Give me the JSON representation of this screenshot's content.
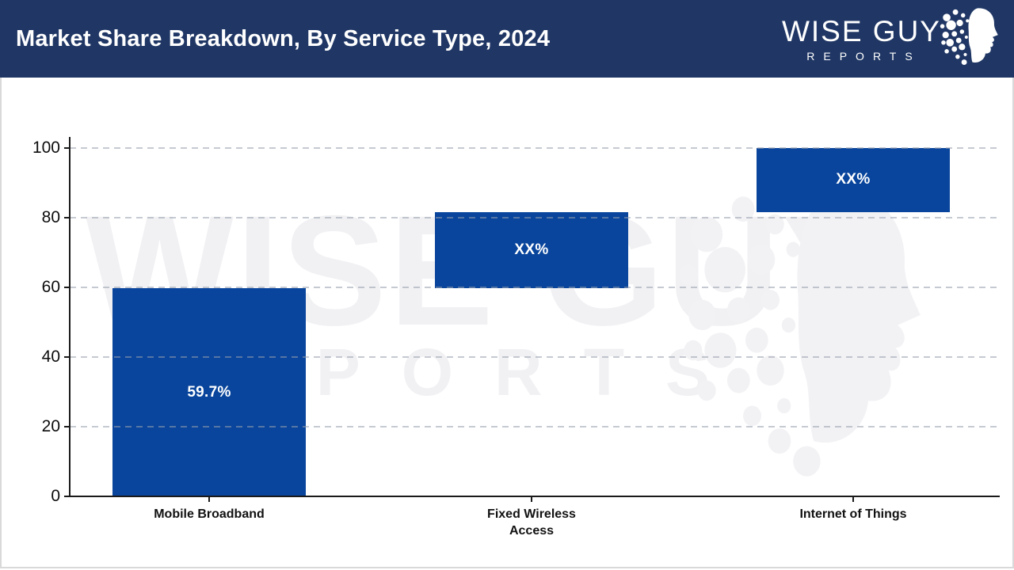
{
  "header": {
    "title": "Market Share Breakdown, By Service Type, 2024",
    "background_color": "#203765",
    "logo": {
      "line1": "WISE GUY",
      "line2": "REPORTS"
    }
  },
  "watermark": {
    "line1": "WISE GUY",
    "line2": "REPORTS"
  },
  "chart_data": {
    "type": "bar",
    "subtype": "floating-segment-waterfall",
    "title": "Market Share Breakdown, By Service Type, 2024",
    "categories": [
      "Mobile Broadband",
      "Fixed Wireless\nAccess",
      "Internet of Things"
    ],
    "segments": [
      {
        "category": "Mobile Broadband",
        "start": 0,
        "end": 59.7,
        "label": "59.7%"
      },
      {
        "category": "Fixed Wireless Access",
        "start": 59.8,
        "end": 81.5,
        "label": "XX%"
      },
      {
        "category": "Internet of Things",
        "start": 81.7,
        "end": 100,
        "label": "XX%"
      }
    ],
    "yticks": [
      0,
      20,
      40,
      60,
      80,
      100
    ],
    "ylim": [
      0,
      100
    ],
    "xlabel": "",
    "ylabel": "",
    "bar_color": "#09459c",
    "grid": "horizontal-dashed",
    "legend": "none"
  }
}
